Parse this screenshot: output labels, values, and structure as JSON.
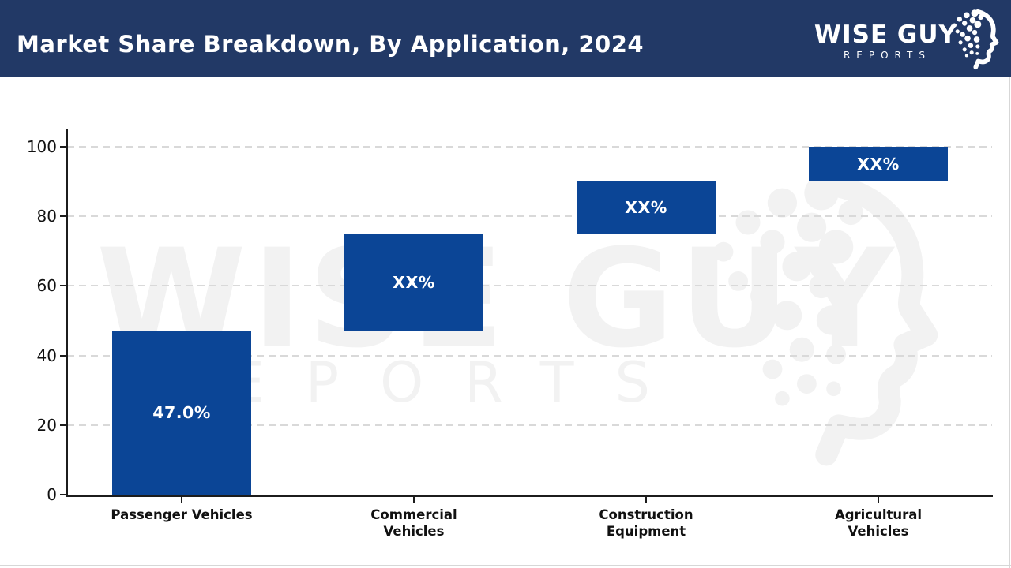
{
  "header": {
    "title": "Market Share Breakdown, By Application, 2024",
    "logo": {
      "wordmark": "WISE GUY",
      "subtext": "REPORTS"
    }
  },
  "watermark": {
    "line1": "WISE GUY",
    "line2": "REPORTS"
  },
  "colors": {
    "header_bg": "#223966",
    "bar": "#0b4596",
    "grid": "#d9d9d9",
    "axis": "#1c1c1c",
    "watermark": "#f2f2f2",
    "bar_label_text": "#ffffff"
  },
  "chart_data": {
    "type": "bar",
    "variant": "waterfall",
    "title": "Market Share Breakdown, By Application, 2024",
    "categories": [
      "Passenger Vehicles",
      "Commercial Vehicles",
      "Construction Equipment",
      "Agricultural Vehicles"
    ],
    "category_lines": [
      [
        "Passenger Vehicles"
      ],
      [
        "Commercial",
        "Vehicles"
      ],
      [
        "Construction",
        "Equipment"
      ],
      [
        "Agricultural",
        "Vehicles"
      ]
    ],
    "segments": [
      {
        "category": "Passenger Vehicles",
        "start": 0,
        "end": 47,
        "label": "47.0%"
      },
      {
        "category": "Commercial Vehicles",
        "start": 47,
        "end": 75,
        "label": "XX%"
      },
      {
        "category": "Construction Equipment",
        "start": 75,
        "end": 90,
        "label": "XX%"
      },
      {
        "category": "Agricultural Vehicles",
        "start": 90,
        "end": 100,
        "label": "XX%"
      }
    ],
    "y_ticks": [
      0,
      20,
      40,
      60,
      80,
      100
    ],
    "ylim": [
      0,
      100
    ],
    "xlabel": "",
    "ylabel": "",
    "grid": "horizontal-dashed",
    "legend": "none"
  }
}
